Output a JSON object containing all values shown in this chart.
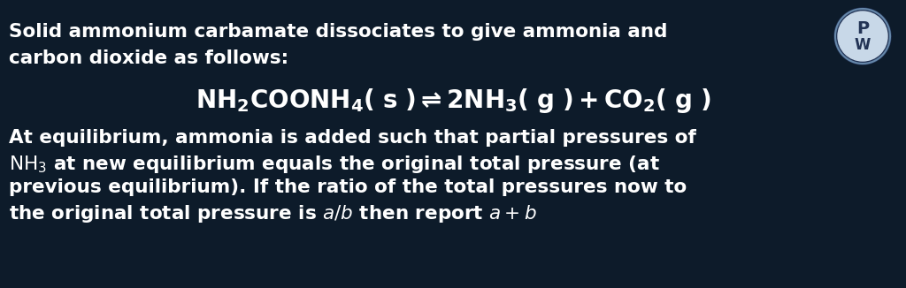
{
  "background_color": "#0d1b2a",
  "text_color": "#ffffff",
  "line1": "Solid ammonium carbamate dissociates to give ammonia and",
  "line2": "carbon dioxide as follows:",
  "para1": "At equilibrium, ammonia is added such that partial pressures of",
  "para2": "$\\mathrm{NH_3}$ at new equilibrium equals the original total pressure (at",
  "para3": "previous equilibrium). If the ratio of the total pressures now to",
  "para4": "the original total pressure is $a/b$ then report $a + b$",
  "font_size_text": 15.5,
  "font_size_eq": 20,
  "figwidth": 10.24,
  "figheight": 3.26,
  "dpi": 100
}
